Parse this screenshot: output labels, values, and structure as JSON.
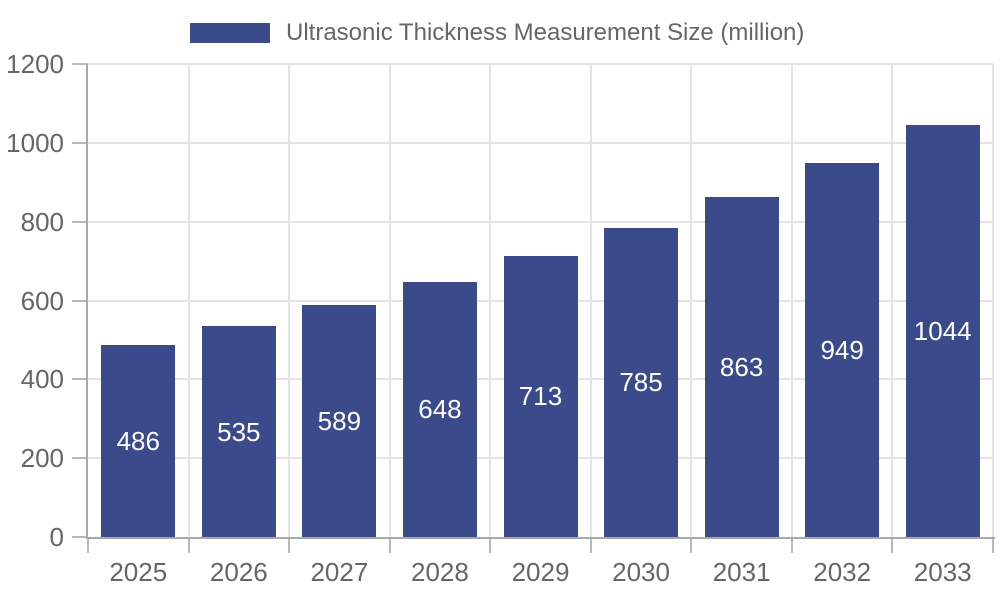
{
  "chart_data": {
    "type": "bar",
    "title": "Ultrasonic Thickness Measurement Size (million)",
    "categories": [
      "2025",
      "2026",
      "2027",
      "2028",
      "2029",
      "2030",
      "2031",
      "2032",
      "2033"
    ],
    "values": [
      486,
      535,
      589,
      648,
      713,
      785,
      863,
      949,
      1044
    ],
    "xlabel": "",
    "ylabel": "",
    "ylim": [
      0,
      1200
    ],
    "yticks": [
      0,
      200,
      400,
      600,
      800,
      1000,
      1200
    ],
    "grid": true,
    "legend_position": "top",
    "value_label_position": "inside-center",
    "colors": {
      "bar": "#3A4A8B",
      "value_label": "#FFFFFF",
      "tick_label": "#666666",
      "legend_label": "#666666",
      "grid_line": "#E4E4E4",
      "axis_line": "#A8A8A8",
      "tick_mark": "#B8B8B8",
      "background": "#FFFFFF"
    }
  }
}
